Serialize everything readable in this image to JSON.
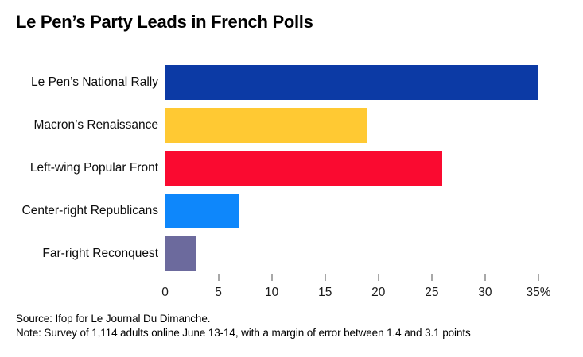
{
  "title": "Le Pen’s Party Leads in French Polls",
  "footer": {
    "source": "Source: Ifop for Le Journal Du Dimanche.",
    "note": "Note: Survey of 1,114 adults online June 13-14, with a margin of error between 1.4 and 3.1 points"
  },
  "chart_data": {
    "type": "bar",
    "orientation": "horizontal",
    "title": "Le Pen’s Party Leads in French Polls",
    "categories": [
      "Le Pen’s National Rally",
      "Macron’s Renaissance",
      "Left-wing Popular Front",
      "Center-right Republicans",
      "Far-right Reconquest"
    ],
    "values": [
      35,
      19,
      26,
      7,
      3
    ],
    "unit": "%",
    "colors": [
      "#0C3AA5",
      "#FFC933",
      "#FA0A30",
      "#0E87FB",
      "#6C6A9D"
    ],
    "xlabel": "",
    "ylabel": "",
    "xlim": [
      0,
      36.5
    ],
    "x_ticks": [
      0,
      5,
      10,
      15,
      20,
      25,
      30,
      35
    ],
    "x_tick_labels": [
      "0",
      "5",
      "10",
      "15",
      "20",
      "25",
      "30",
      "35%"
    ],
    "grid": false,
    "legend": "none"
  }
}
